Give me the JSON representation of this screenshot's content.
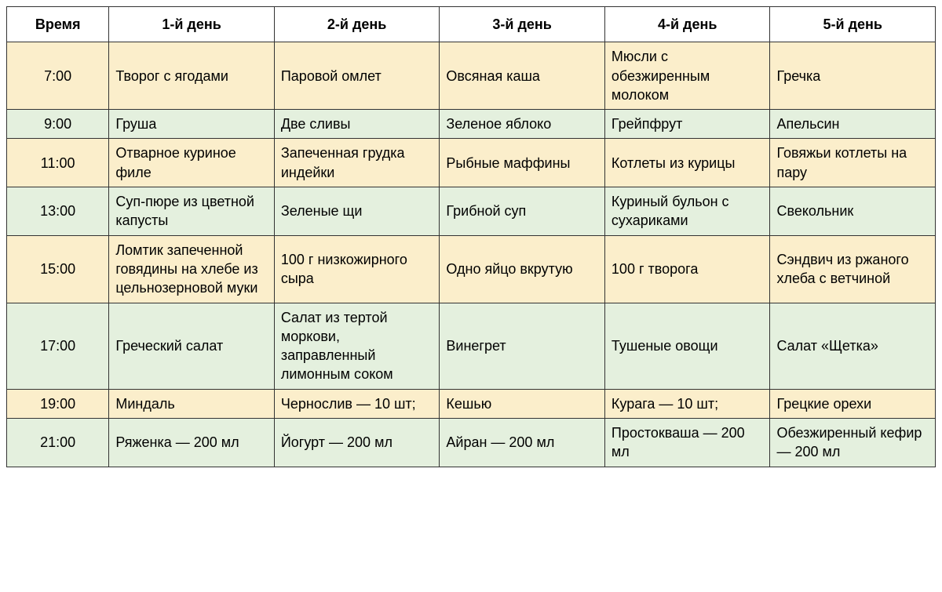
{
  "meal_plan": {
    "type": "table",
    "background_color": "#ffffff",
    "border_color": "#333333",
    "row_colors": {
      "odd": "#fbeecb",
      "even": "#e4f0de"
    },
    "header_bg": "#ffffff",
    "font_family": "Arial, sans-serif",
    "cell_fontsize": 18,
    "header_fontsize": 18,
    "columns": [
      "Время",
      "1-й день",
      "2-й день",
      "3-й день",
      "4-й день",
      "5-й день"
    ],
    "rows": [
      {
        "time": "7:00",
        "cells": [
          "Творог с ягодами",
          "Паровой омлет",
          "Овсяная каша",
          "Мюсли с обезжиренным молоком",
          "Гречка"
        ]
      },
      {
        "time": "9:00",
        "cells": [
          "Груша",
          "Две сливы",
          "Зеленое яблоко",
          "Грейпфрут",
          "Апельсин"
        ]
      },
      {
        "time": "11:00",
        "cells": [
          "Отварное куриное филе",
          "Запеченная грудка индейки",
          "Рыбные маффины",
          "Котлеты из курицы",
          "Говяжьи котлеты на пару"
        ]
      },
      {
        "time": "13:00",
        "cells": [
          "Суп-пюре из цветной капусты",
          "Зеленые щи",
          "Грибной суп",
          "Куриный бульон с сухариками",
          "Свекольник"
        ]
      },
      {
        "time": "15:00",
        "cells": [
          "Ломтик запеченной говядины на хлебе из цельнозерновой муки",
          "100 г низкожирного сыра",
          "Одно яйцо вкрутую",
          "100 г творога",
          "Сэндвич из ржаного хлеба с ветчиной"
        ]
      },
      {
        "time": "17:00",
        "cells": [
          "Греческий салат",
          "Салат из тертой моркови, заправленный лимонным соком",
          "Винегрет",
          "Тушеные овощи",
          "Салат «Щетка»"
        ]
      },
      {
        "time": "19:00",
        "cells": [
          "Миндаль",
          "Чернослив — 10 шт;",
          "Кешью",
          "Курага — 10 шт;",
          "Грецкие орехи"
        ]
      },
      {
        "time": "21:00",
        "cells": [
          "Ряженка — 200 мл",
          "Йогурт — 200 мл",
          "Айран — 200 мл",
          "Простокваша — 200 мл",
          "Обезжиренный кефир — 200 мл"
        ]
      }
    ]
  }
}
